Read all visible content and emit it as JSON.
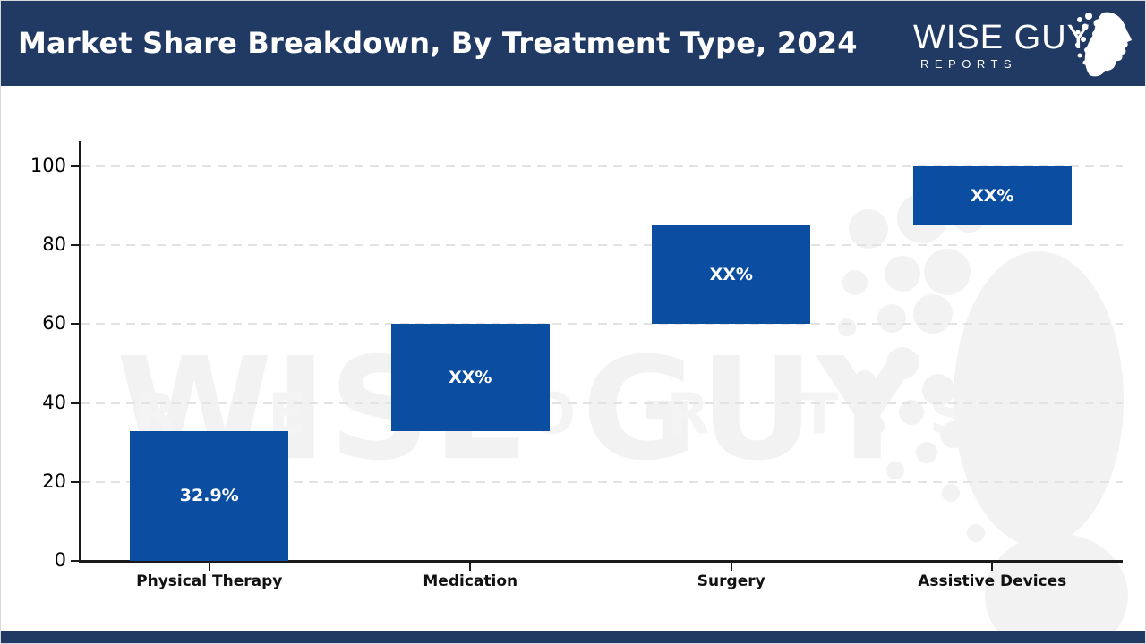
{
  "header": {
    "title": "Market Share Breakdown, By Treatment Type, 2024",
    "logo": {
      "line1": "WISE GUY",
      "line2": "R E P O R T S"
    }
  },
  "watermark": {
    "line1": "WISE GUY",
    "line2": "R E P O R T S"
  },
  "chart_data": {
    "type": "bar",
    "subtype": "waterfall",
    "title": "Market Share Breakdown, By Treatment Type, 2024",
    "categories": [
      "Physical Therapy",
      "Medication",
      "Surgery",
      "Assistive Devices"
    ],
    "segments": [
      {
        "category": "Physical Therapy",
        "start": 0,
        "end": 32.9,
        "label": "32.9%"
      },
      {
        "category": "Medication",
        "start": 32.9,
        "end": 60,
        "label": "XX%"
      },
      {
        "category": "Surgery",
        "start": 60,
        "end": 85,
        "label": "XX%"
      },
      {
        "category": "Assistive Devices",
        "start": 85,
        "end": 100,
        "label": "XX%"
      }
    ],
    "xlabel": "",
    "ylabel": "",
    "yticks": [
      0,
      20,
      40,
      60,
      80,
      100
    ],
    "ylim": [
      0,
      106
    ],
    "grid": "horizontal-dashed",
    "legend": "none",
    "bar_color": "#0b4da1",
    "bar_label_color": "#ffffff"
  },
  "colors": {
    "header_bg": "#213a63",
    "footer_bg": "#213a63",
    "bar": "#0b4da1",
    "axis": "#1a1a1a",
    "grid": "#e3e3e3",
    "watermark": "#f2f2f2"
  }
}
